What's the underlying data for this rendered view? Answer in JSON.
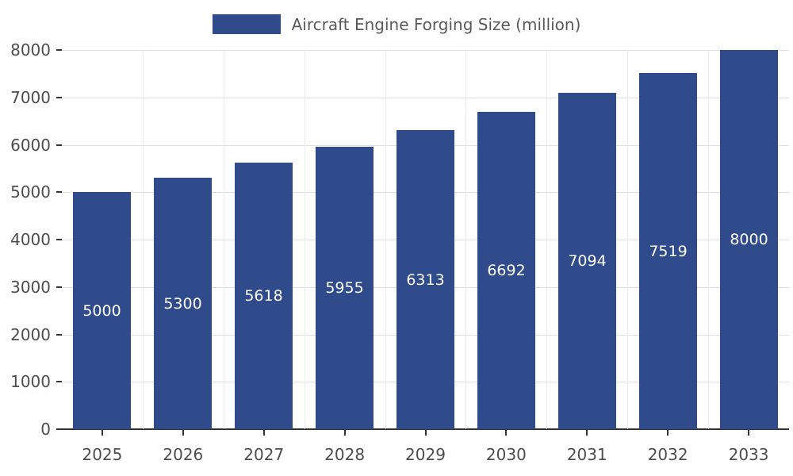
{
  "colors": {
    "bar": "#2f4b8c",
    "bar_label_text": "#ffffff",
    "axis": "#333333",
    "tick_text": "#4d4d4d",
    "legend_text": "#595959",
    "gridline": "#e0e0e0"
  },
  "legend": {
    "label": "Aircraft Engine Forging Size (million)"
  },
  "chart_data": {
    "type": "bar",
    "title": "Aircraft Engine Forging Size (million)",
    "categories": [
      "2025",
      "2026",
      "2027",
      "2028",
      "2029",
      "2030",
      "2031",
      "2032",
      "2033"
    ],
    "values": [
      5000,
      5300,
      5618,
      5955,
      6313,
      6692,
      7094,
      7519,
      8000
    ],
    "series_name": "Aircraft Engine Forging Size (million)",
    "xlabel": "",
    "ylabel": "",
    "ylim": [
      0,
      8000
    ],
    "yticks": [
      0,
      1000,
      2000,
      3000,
      4000,
      5000,
      6000,
      7000,
      8000
    ],
    "grid": true,
    "legend_position": "top",
    "bar_labels_visible": true
  }
}
